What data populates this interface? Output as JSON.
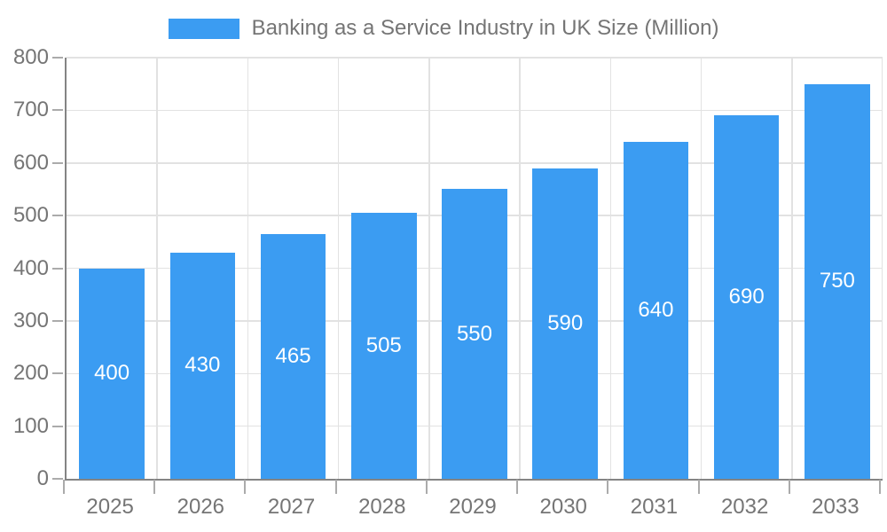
{
  "legend": {
    "label": "Banking as a Service Industry in UK Size (Million)"
  },
  "colors": {
    "bar": "#3b9cf2",
    "grid": "#e2e2e2",
    "axis": "#848484",
    "tick": "#ababab",
    "axis_label": "#757575",
    "value_label": "#ffffff",
    "background": "#ffffff"
  },
  "chart_data": {
    "type": "bar",
    "title": "Banking as a Service Industry in UK Size (Million)",
    "series_name": "Banking as a Service Industry in UK Size (Million)",
    "categories": [
      "2025",
      "2026",
      "2027",
      "2028",
      "2029",
      "2030",
      "2031",
      "2032",
      "2033"
    ],
    "values": [
      400,
      430,
      465,
      505,
      550,
      590,
      640,
      690,
      750
    ],
    "value_labels": [
      "400",
      "430",
      "465",
      "505",
      "550",
      "590",
      "640",
      "690",
      "750"
    ],
    "xlabel": "",
    "ylabel": "",
    "ylim": [
      0,
      800
    ],
    "yticks": [
      0,
      100,
      200,
      300,
      400,
      500,
      600,
      700,
      800
    ],
    "grid": true,
    "legend_position": "top"
  }
}
